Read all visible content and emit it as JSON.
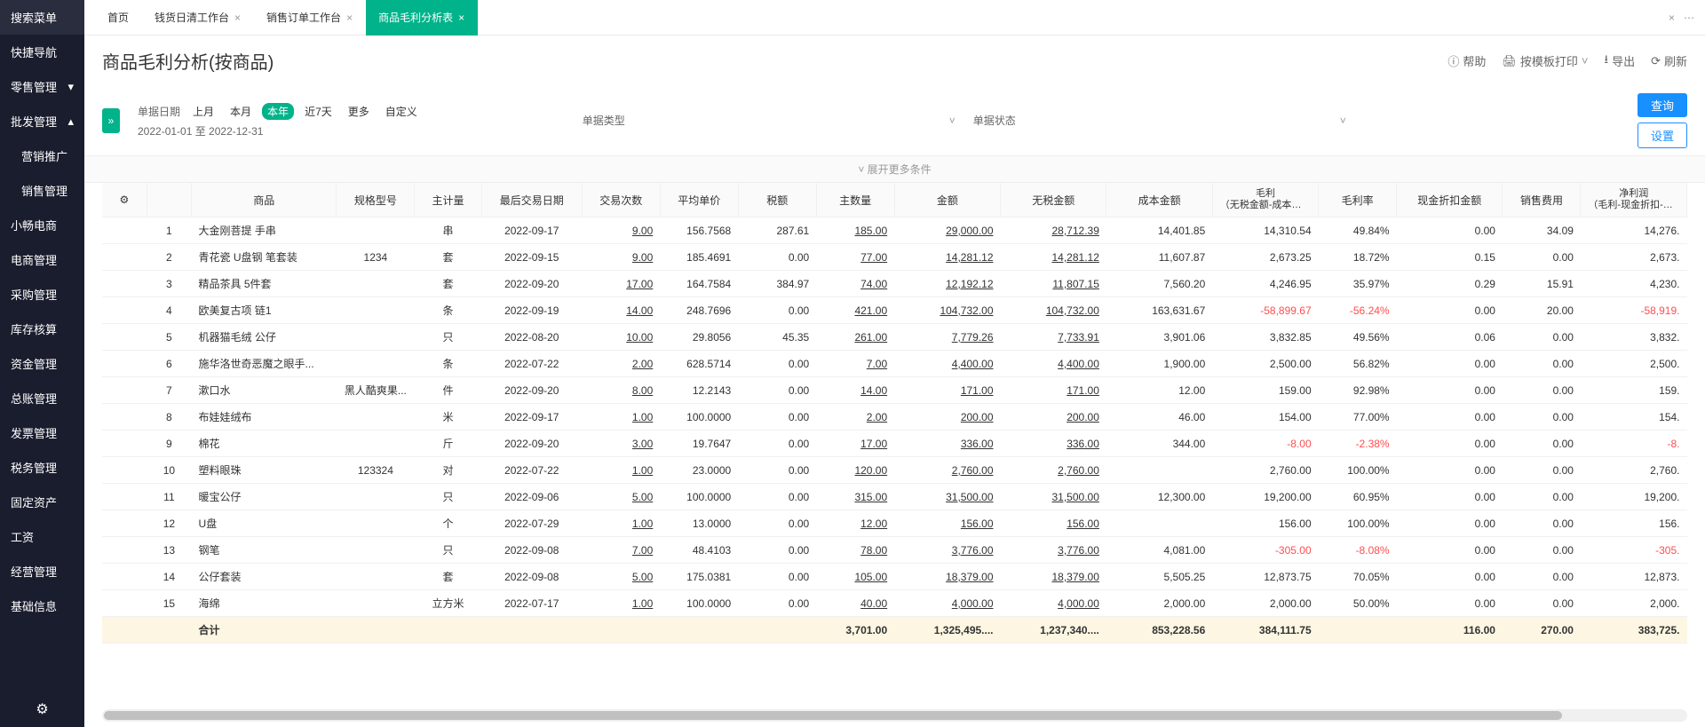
{
  "sidebar": {
    "items": [
      {
        "label": "搜索菜单"
      },
      {
        "label": "快捷导航"
      },
      {
        "label": "零售管理",
        "caret": "▾"
      },
      {
        "label": "批发管理",
        "caret": "▴"
      },
      {
        "label": "营销推广",
        "indent": true
      },
      {
        "label": "销售管理",
        "indent": true
      },
      {
        "label": "小畅电商"
      },
      {
        "label": "电商管理"
      },
      {
        "label": "采购管理"
      },
      {
        "label": "库存核算"
      },
      {
        "label": "资金管理"
      },
      {
        "label": "总账管理"
      },
      {
        "label": "发票管理"
      },
      {
        "label": "税务管理"
      },
      {
        "label": "固定资产"
      },
      {
        "label": "工资"
      },
      {
        "label": "经营管理"
      },
      {
        "label": "基础信息"
      }
    ]
  },
  "tabs": [
    {
      "label": "首页",
      "closable": false
    },
    {
      "label": "钱货日清工作台",
      "closable": true
    },
    {
      "label": "销售订单工作台",
      "closable": true
    },
    {
      "label": "商品毛利分析表",
      "closable": true,
      "active": true
    }
  ],
  "close_icon": "×",
  "dots_icon": "⋯",
  "page_title": "商品毛利分析(按商品)",
  "actions": {
    "help": "帮助",
    "print": "按模板打印",
    "export": "导出",
    "refresh": "刷新"
  },
  "filters": {
    "date_label": "单据日期",
    "periods": [
      "上月",
      "本月",
      "本年",
      "近7天",
      "更多",
      "自定义"
    ],
    "active_period": "本年",
    "date_range": "2022-01-01 至 2022-12-31",
    "type_label": "单据类型",
    "status_label": "单据状态",
    "query": "查询",
    "settings": "设置",
    "expand": "展开更多条件"
  },
  "table": {
    "columns": [
      {
        "key": "gear",
        "label": "⚙",
        "cls": "col-gear"
      },
      {
        "key": "idx",
        "label": "",
        "cls": "col-idx"
      },
      {
        "key": "name",
        "label": "商品",
        "cls": "col-name",
        "align": "left"
      },
      {
        "key": "spec",
        "label": "规格型号",
        "cls": "col-spec",
        "align": "center"
      },
      {
        "key": "unit",
        "label": "主计量",
        "cls": "col-unit",
        "align": "center"
      },
      {
        "key": "last_date",
        "label": "最后交易日期",
        "cls": "col-date",
        "align": "center"
      },
      {
        "key": "trades",
        "label": "交易次数",
        "cls": "col-num",
        "underline": true
      },
      {
        "key": "avg_price",
        "label": "平均单价",
        "cls": "col-num"
      },
      {
        "key": "tax",
        "label": "税额",
        "cls": "col-num"
      },
      {
        "key": "qty",
        "label": "主数量",
        "cls": "col-num",
        "underline": true
      },
      {
        "key": "amount",
        "label": "金额",
        "cls": "col-money",
        "underline": true
      },
      {
        "key": "notax",
        "label": "无税金额",
        "cls": "col-money",
        "underline": true
      },
      {
        "key": "cost",
        "label": "成本金额",
        "cls": "col-money"
      },
      {
        "key": "gross",
        "label": "毛利\n（无税金额-成本金额）",
        "cls": "col-money",
        "two": true
      },
      {
        "key": "rate",
        "label": "毛利率",
        "cls": "col-num"
      },
      {
        "key": "disc",
        "label": "现金折扣金额",
        "cls": "col-money"
      },
      {
        "key": "fee",
        "label": "销售费用",
        "cls": "col-num"
      },
      {
        "key": "net",
        "label": "净利润\n（毛利-现金折扣-销售费",
        "cls": "col-money",
        "two": true
      }
    ],
    "rows": [
      {
        "idx": "1",
        "name": "大金刚菩提 手串",
        "spec": "",
        "unit": "串",
        "last_date": "2022-09-17",
        "trades": "9.00",
        "avg_price": "156.7568",
        "tax": "287.61",
        "qty": "185.00",
        "amount": "29,000.00",
        "notax": "28,712.39",
        "cost": "14,401.85",
        "gross": "14,310.54",
        "rate": "49.84%",
        "disc": "0.00",
        "fee": "34.09",
        "net": "14,276."
      },
      {
        "idx": "2",
        "name": "青花瓷 U盘钢 笔套装",
        "spec": "1234",
        "unit": "套",
        "last_date": "2022-09-15",
        "trades": "9.00",
        "avg_price": "185.4691",
        "tax": "0.00",
        "qty": "77.00",
        "amount": "14,281.12",
        "notax": "14,281.12",
        "cost": "11,607.87",
        "gross": "2,673.25",
        "rate": "18.72%",
        "disc": "0.15",
        "fee": "0.00",
        "net": "2,673."
      },
      {
        "idx": "3",
        "name": "精品茶具 5件套",
        "spec": "",
        "unit": "套",
        "last_date": "2022-09-20",
        "trades": "17.00",
        "avg_price": "164.7584",
        "tax": "384.97",
        "qty": "74.00",
        "amount": "12,192.12",
        "notax": "11,807.15",
        "cost": "7,560.20",
        "gross": "4,246.95",
        "rate": "35.97%",
        "disc": "0.29",
        "fee": "15.91",
        "net": "4,230."
      },
      {
        "idx": "4",
        "name": "欧美复古项 链1",
        "spec": "",
        "unit": "条",
        "last_date": "2022-09-19",
        "trades": "14.00",
        "avg_price": "248.7696",
        "tax": "0.00",
        "qty": "421.00",
        "amount": "104,732.00",
        "notax": "104,732.00",
        "cost": "163,631.67",
        "gross": "-58,899.67",
        "gross_neg": true,
        "rate": "-56.24%",
        "rate_neg": true,
        "disc": "0.00",
        "fee": "20.00",
        "net": "-58,919.",
        "net_neg": true
      },
      {
        "idx": "5",
        "name": "机器猫毛绒 公仔",
        "spec": "",
        "unit": "只",
        "last_date": "2022-08-20",
        "trades": "10.00",
        "avg_price": "29.8056",
        "tax": "45.35",
        "qty": "261.00",
        "amount": "7,779.26",
        "notax": "7,733.91",
        "cost": "3,901.06",
        "gross": "3,832.85",
        "rate": "49.56%",
        "disc": "0.06",
        "fee": "0.00",
        "net": "3,832."
      },
      {
        "idx": "6",
        "name": "施华洛世奇恶魔之眼手...",
        "spec": "",
        "unit": "条",
        "last_date": "2022-07-22",
        "trades": "2.00",
        "avg_price": "628.5714",
        "tax": "0.00",
        "qty": "7.00",
        "amount": "4,400.00",
        "notax": "4,400.00",
        "cost": "1,900.00",
        "gross": "2,500.00",
        "rate": "56.82%",
        "disc": "0.00",
        "fee": "0.00",
        "net": "2,500."
      },
      {
        "idx": "7",
        "name": "漱口水",
        "spec": "黑人酷爽果...",
        "unit": "件",
        "last_date": "2022-09-20",
        "trades": "8.00",
        "avg_price": "12.2143",
        "tax": "0.00",
        "qty": "14.00",
        "amount": "171.00",
        "notax": "171.00",
        "cost": "12.00",
        "gross": "159.00",
        "rate": "92.98%",
        "disc": "0.00",
        "fee": "0.00",
        "net": "159."
      },
      {
        "idx": "8",
        "name": "布娃娃绒布",
        "spec": "",
        "unit": "米",
        "last_date": "2022-09-17",
        "trades": "1.00",
        "avg_price": "100.0000",
        "tax": "0.00",
        "qty": "2.00",
        "amount": "200.00",
        "notax": "200.00",
        "cost": "46.00",
        "gross": "154.00",
        "rate": "77.00%",
        "disc": "0.00",
        "fee": "0.00",
        "net": "154."
      },
      {
        "idx": "9",
        "name": "棉花",
        "spec": "",
        "unit": "斤",
        "last_date": "2022-09-20",
        "trades": "3.00",
        "avg_price": "19.7647",
        "tax": "0.00",
        "qty": "17.00",
        "amount": "336.00",
        "notax": "336.00",
        "cost": "344.00",
        "gross": "-8.00",
        "gross_neg": true,
        "rate": "-2.38%",
        "rate_neg": true,
        "disc": "0.00",
        "fee": "0.00",
        "net": "-8.",
        "net_neg": true
      },
      {
        "idx": "10",
        "name": "塑料眼珠",
        "spec": "123324",
        "unit": "对",
        "last_date": "2022-07-22",
        "trades": "1.00",
        "avg_price": "23.0000",
        "tax": "0.00",
        "qty": "120.00",
        "amount": "2,760.00",
        "notax": "2,760.00",
        "cost": "",
        "gross": "2,760.00",
        "rate": "100.00%",
        "disc": "0.00",
        "fee": "0.00",
        "net": "2,760."
      },
      {
        "idx": "11",
        "name": "暖宝公仔",
        "spec": "",
        "unit": "只",
        "last_date": "2022-09-06",
        "trades": "5.00",
        "avg_price": "100.0000",
        "tax": "0.00",
        "qty": "315.00",
        "amount": "31,500.00",
        "notax": "31,500.00",
        "cost": "12,300.00",
        "gross": "19,200.00",
        "rate": "60.95%",
        "disc": "0.00",
        "fee": "0.00",
        "net": "19,200."
      },
      {
        "idx": "12",
        "name": "U盘",
        "spec": "",
        "unit": "个",
        "last_date": "2022-07-29",
        "trades": "1.00",
        "avg_price": "13.0000",
        "tax": "0.00",
        "qty": "12.00",
        "amount": "156.00",
        "notax": "156.00",
        "cost": "",
        "gross": "156.00",
        "rate": "100.00%",
        "disc": "0.00",
        "fee": "0.00",
        "net": "156."
      },
      {
        "idx": "13",
        "name": "钢笔",
        "spec": "",
        "unit": "只",
        "last_date": "2022-09-08",
        "trades": "7.00",
        "avg_price": "48.4103",
        "tax": "0.00",
        "qty": "78.00",
        "amount": "3,776.00",
        "notax": "3,776.00",
        "cost": "4,081.00",
        "gross": "-305.00",
        "gross_neg": true,
        "rate": "-8.08%",
        "rate_neg": true,
        "disc": "0.00",
        "fee": "0.00",
        "net": "-305.",
        "net_neg": true
      },
      {
        "idx": "14",
        "name": "公仔套装",
        "spec": "",
        "unit": "套",
        "last_date": "2022-09-08",
        "trades": "5.00",
        "avg_price": "175.0381",
        "tax": "0.00",
        "qty": "105.00",
        "amount": "18,379.00",
        "notax": "18,379.00",
        "cost": "5,505.25",
        "gross": "12,873.75",
        "rate": "70.05%",
        "disc": "0.00",
        "fee": "0.00",
        "net": "12,873."
      },
      {
        "idx": "15",
        "name": "海绵",
        "spec": "",
        "unit": "立方米",
        "last_date": "2022-07-17",
        "trades": "1.00",
        "avg_price": "100.0000",
        "tax": "0.00",
        "qty": "40.00",
        "amount": "4,000.00",
        "notax": "4,000.00",
        "cost": "2,000.00",
        "gross": "2,000.00",
        "rate": "50.00%",
        "disc": "0.00",
        "fee": "0.00",
        "net": "2,000."
      }
    ],
    "footer": {
      "label": "合计",
      "qty": "3,701.00",
      "amount": "1,325,495....",
      "notax": "1,237,340....",
      "cost": "853,228.56",
      "gross": "384,111.75",
      "disc": "116.00",
      "fee": "270.00",
      "net": "383,725."
    }
  }
}
